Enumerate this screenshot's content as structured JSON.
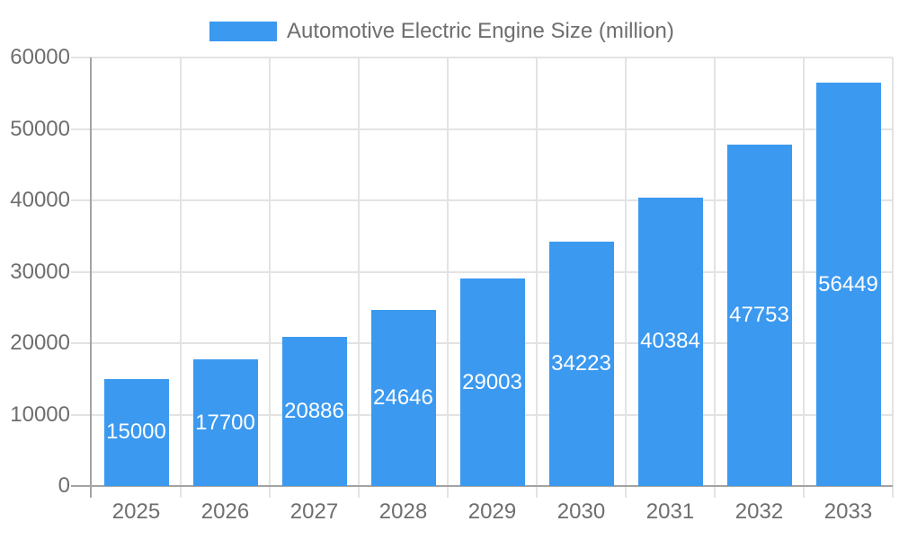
{
  "chart_data": {
    "type": "bar",
    "title": "Automotive Electric Engine Size (million)",
    "legend": {
      "position": "top",
      "label": "Automotive Electric Engine Size (million)"
    },
    "categories": [
      "2025",
      "2026",
      "2027",
      "2028",
      "2029",
      "2030",
      "2031",
      "2032",
      "2033"
    ],
    "values": [
      15000,
      17700,
      20886,
      24646,
      29003,
      34223,
      40384,
      47753,
      56449
    ],
    "xlabel": "",
    "ylabel": "",
    "ylim": [
      0,
      60000
    ],
    "ytick_step": 10000,
    "ytick_labels": [
      "0",
      "10000",
      "20000",
      "30000",
      "40000",
      "50000",
      "60000"
    ],
    "grid": true,
    "value_labels_inside_bars": true,
    "colors": {
      "bar": "#3b99f0",
      "value_label": "#ffffff",
      "grid_line": "#e3e3e3",
      "axis_line": "#a3a3a3",
      "text": "#6e6e6e",
      "background": "#ffffff"
    }
  }
}
